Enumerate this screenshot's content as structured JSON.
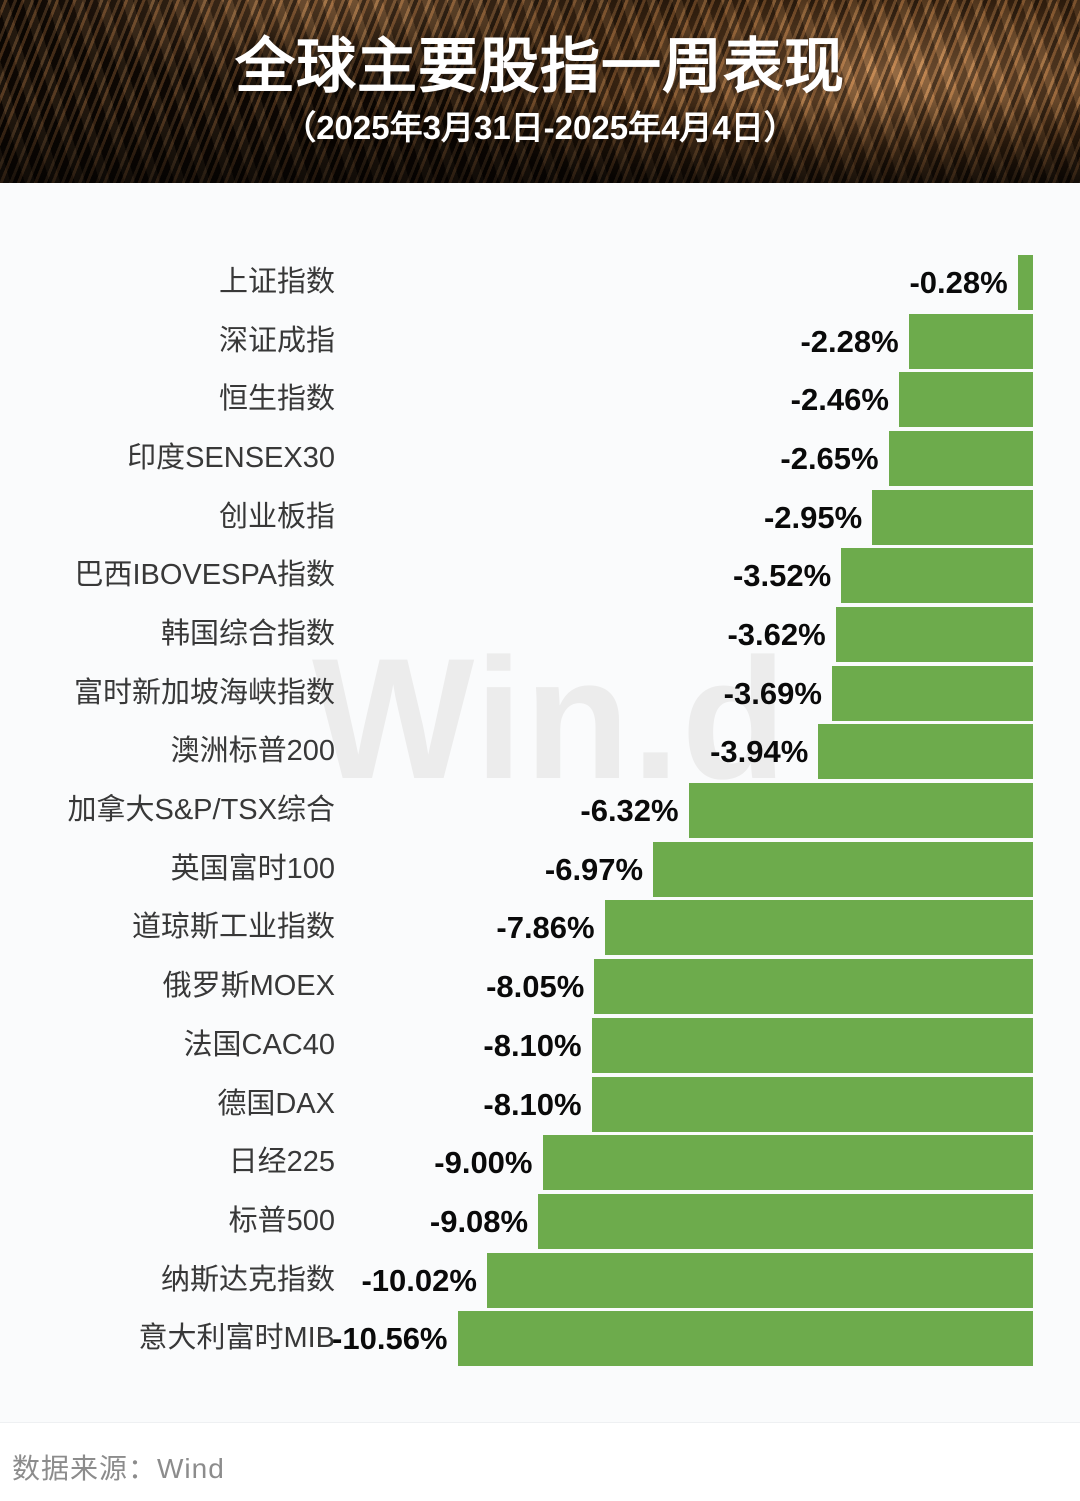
{
  "header": {
    "title": "全球主要股指一周表现",
    "subtitle": "（2025年3月31日-2025年4月4日）"
  },
  "watermark": "Win.d",
  "footer": {
    "source": "数据来源：Wind"
  },
  "chart_data": {
    "type": "bar",
    "orientation": "horizontal",
    "title": "全球主要股指一周表现",
    "subtitle": "（2025年3月31日-2025年4月4日）",
    "unit": "%",
    "categories": [
      "上证指数",
      "深证成指",
      "恒生指数",
      "印度SENSEX30",
      "创业板指",
      "巴西IBOVESPA指数",
      "韩国综合指数",
      "富时新加坡海峡指数",
      "澳洲标普200",
      "加拿大S&P/TSX综合",
      "英国富时100",
      "道琼斯工业指数",
      "俄罗斯MOEX",
      "法国CAC40",
      "德国DAX",
      "日经225",
      "标普500",
      "纳斯达克指数",
      "意大利富时MIB"
    ],
    "values": [
      -0.28,
      -2.28,
      -2.46,
      -2.65,
      -2.95,
      -3.52,
      -3.62,
      -3.69,
      -3.94,
      -6.32,
      -6.97,
      -7.86,
      -8.05,
      -8.1,
      -8.1,
      -9.0,
      -9.08,
      -10.02,
      -10.56
    ],
    "value_labels": [
      "-0.28%",
      "-2.28%",
      "-2.46%",
      "-2.65%",
      "-2.95%",
      "-3.52%",
      "-3.62%",
      "-3.69%",
      "-3.94%",
      "-6.32%",
      "-6.97%",
      "-7.86%",
      "-8.05%",
      "-8.10%",
      "-8.10%",
      "-9.00%",
      "-9.08%",
      "-10.02%",
      "-10.56%"
    ],
    "xlim": [
      -11,
      0
    ],
    "grid": false,
    "legend": false,
    "bar_color": "#6dab4c",
    "category_color": "#383838",
    "value_color": "#0a0a0a",
    "source": "Wind"
  }
}
